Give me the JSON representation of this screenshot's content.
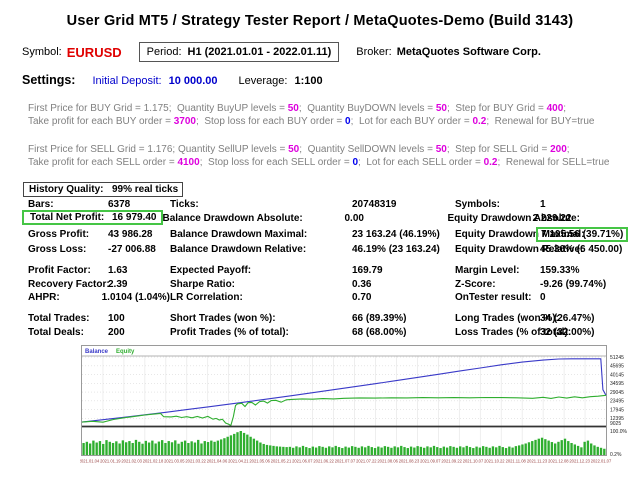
{
  "title": "User Grid MT5  /  Strategy Tester Report  /  MetaQuotes-Demo (Build 3143)",
  "header": {
    "symbol_label": "Symbol:",
    "symbol_value": "EURUSD",
    "period_label": "Period:",
    "period_value": "H1 (2021.01.01 - 2022.01.11)",
    "broker_label": "Broker:",
    "broker_value": "MetaQuotes Software Corp."
  },
  "settings": {
    "label": "Settings:",
    "deposit_label": "Initial Deposit:",
    "deposit_value": "10 000.00",
    "leverage_label": "Leverage:",
    "leverage_value": "1:100"
  },
  "params": {
    "lines": [
      [
        {
          "t": "First Price for BUY Grid = 1.175;  Quantity BuyUP levels = ",
          "c": "g"
        },
        {
          "t": "50",
          "c": "m"
        },
        {
          "t": ";  Quantity BuyDOWN levels = ",
          "c": "g"
        },
        {
          "t": "50",
          "c": "m"
        },
        {
          "t": ";  Step for BUY Grid = ",
          "c": "g"
        },
        {
          "t": "400",
          "c": "m"
        },
        {
          "t": ";",
          "c": "g"
        }
      ],
      [
        {
          "t": "Take profit for each BUY order = ",
          "c": "g"
        },
        {
          "t": "3700",
          "c": "m"
        },
        {
          "t": ";  Stop loss for each BUY order = ",
          "c": "g"
        },
        {
          "t": "0",
          "c": "b"
        },
        {
          "t": ";  Lot for each BUY order = ",
          "c": "g"
        },
        {
          "t": "0.2",
          "c": "m"
        },
        {
          "t": ";  Renewal for BUY=true",
          "c": "g"
        }
      ],
      [
        {
          "t": "First Price for SELL Grid = 1.176; Quantity SellUP levels = ",
          "c": "g"
        },
        {
          "t": "50",
          "c": "m"
        },
        {
          "t": ";  Quantity SellDOWN levels = ",
          "c": "g"
        },
        {
          "t": "50",
          "c": "m"
        },
        {
          "t": ";  Step for SELL Grid = ",
          "c": "g"
        },
        {
          "t": "200",
          "c": "m"
        },
        {
          "t": ";",
          "c": "g"
        }
      ],
      [
        {
          "t": "Take profit for each SELL order = ",
          "c": "g"
        },
        {
          "t": "4100",
          "c": "m"
        },
        {
          "t": ";  Stop loss for each SELL order = ",
          "c": "g"
        },
        {
          "t": "0",
          "c": "b"
        },
        {
          "t": ";  Lot for each SELL order = ",
          "c": "g"
        },
        {
          "t": "0.2",
          "c": "m"
        },
        {
          "t": ";  Renewal for SELL=true",
          "c": "g"
        }
      ]
    ],
    "paragraph_breaks": [
      2
    ]
  },
  "stats": {
    "rows": [
      {
        "gap": false,
        "cells": [
          {
            "l": "History Quality:",
            "v": "99% real ticks",
            "frame": "pair-black"
          },
          null,
          null
        ]
      },
      {
        "gap": false,
        "cells": [
          {
            "l": "Bars:",
            "v": "6378"
          },
          {
            "l": "Ticks:",
            "v": "20748319"
          },
          {
            "l": "Symbols:",
            "v": "1"
          }
        ]
      },
      {
        "gap": false,
        "cells": [
          {
            "l": "Total Net Profit:",
            "v": "16 979.40",
            "frame": "pair-green"
          },
          {
            "l": "Balance Drawdown Absolute:",
            "v": "0.00"
          },
          {
            "l": "Equity Drawdown Absolute:",
            "v": "2 229.22"
          }
        ]
      },
      {
        "gap": false,
        "cells": [
          {
            "l": "Gross Profit:",
            "v": "43 986.28"
          },
          {
            "l": "Balance Drawdown Maximal:",
            "v": "23 163.24 (46.19%)"
          },
          {
            "l": "Equity Drawdown Maximal:",
            "v": "7 105.56 (39.71%)",
            "frame": "value-green"
          }
        ]
      },
      {
        "gap": false,
        "cells": [
          {
            "l": "Gross Loss:",
            "v": "-27 006.88"
          },
          {
            "l": "Balance Drawdown Relative:",
            "v": "46.19% (23 163.24)"
          },
          {
            "l": "Equity Drawdown Relative:",
            "v": "45.36% (6 450.00)"
          }
        ]
      },
      {
        "gap": true,
        "cells": [
          {
            "l": "Profit Factor:",
            "v": "1.63"
          },
          {
            "l": "Expected Payoff:",
            "v": "169.79"
          },
          {
            "l": "Margin Level:",
            "v": "159.33%"
          }
        ]
      },
      {
        "gap": false,
        "cells": [
          {
            "l": "Recovery Factor:",
            "v": "2.39"
          },
          {
            "l": "Sharpe Ratio:",
            "v": "0.36"
          },
          {
            "l": "Z-Score:",
            "v": "-9.26 (99.74%)"
          }
        ]
      },
      {
        "gap": false,
        "cells": [
          {
            "l": "AHPR:",
            "v": "1.0104 (1.04%)"
          },
          {
            "l": "LR Correlation:",
            "v": "0.70"
          },
          {
            "l": "OnTester result:",
            "v": "0"
          }
        ]
      },
      {
        "gap": true,
        "cells": [
          {
            "l": "Total Trades:",
            "v": "100"
          },
          {
            "l": "Short Trades (won %):",
            "v": "66 (89.39%)"
          },
          {
            "l": "Long Trades (won %):",
            "v": "34 (26.47%)"
          }
        ]
      },
      {
        "gap": false,
        "cells": [
          {
            "l": "Total Deals:",
            "v": "200"
          },
          {
            "l": "Profit Trades (% of total):",
            "v": "68 (68.00%)"
          },
          {
            "l": "Loss Trades (% of total):",
            "v": "32 (32.00%)"
          }
        ]
      }
    ]
  },
  "chart_data": {
    "type": "line",
    "title": "Balance / Equity curve with deposit load bars",
    "legend": [
      {
        "name": "Balance",
        "color": "#3a3ac8"
      },
      {
        "name": "Equity",
        "color": "#2fae2f"
      }
    ],
    "y_axis_labels": [
      "51245",
      "45695",
      "40145",
      "34595",
      "29045",
      "23495",
      "17945",
      "12395"
    ],
    "y_bottom_label": "9025",
    "y_value_max": 51900,
    "y_value_min": 7500,
    "load_axis": {
      "top": "100.0%",
      "bottom": "0.2%"
    },
    "x_labels": [
      "2021.01.04",
      "2021.01.19",
      "2021.02.03",
      "2021.02.18",
      "2021.03.05",
      "2021.03.22",
      "2021.04.06",
      "2021.04.21",
      "2021.05.06",
      "2021.05.21",
      "2021.06.07",
      "2021.06.22",
      "2021.07.07",
      "2021.07.22",
      "2021.08.06",
      "2021.08.23",
      "2021.09.07",
      "2021.09.22",
      "2021.10.07",
      "2021.10.22",
      "2021.11.08",
      "2021.11.23",
      "2021.12.08",
      "2021.12.23",
      "2022.01.07"
    ],
    "series": [
      {
        "name": "Balance",
        "color": "#3a3ac8",
        "points": [
          [
            0,
            10000
          ],
          [
            4,
            11500
          ],
          [
            8,
            13050
          ],
          [
            12,
            14600
          ],
          [
            16,
            16200
          ],
          [
            20,
            17900
          ],
          [
            24,
            19600
          ],
          [
            28,
            21300
          ],
          [
            32,
            23100
          ],
          [
            36,
            24900
          ],
          [
            40,
            26700
          ],
          [
            44,
            28600
          ],
          [
            48,
            30500
          ],
          [
            52,
            32400
          ],
          [
            56,
            34300
          ],
          [
            60,
            36300
          ],
          [
            64,
            38300
          ],
          [
            68,
            40300
          ],
          [
            72,
            42300
          ],
          [
            76,
            44300
          ],
          [
            80,
            46300
          ],
          [
            84,
            48000
          ],
          [
            88,
            49300
          ],
          [
            91,
            50000
          ],
          [
            93.5,
            50148
          ],
          [
            99,
            50148
          ],
          [
            99.4,
            30500
          ],
          [
            100,
            26979
          ]
        ]
      },
      {
        "name": "Equity",
        "color": "#2fae2f",
        "points": [
          [
            0,
            10000
          ],
          [
            2,
            10500
          ],
          [
            4,
            9900
          ],
          [
            6,
            11600
          ],
          [
            8,
            12700
          ],
          [
            10,
            13600
          ],
          [
            12,
            14500
          ],
          [
            14,
            15200
          ],
          [
            15,
            15400
          ],
          [
            15.6,
            13400
          ],
          [
            17,
            13300
          ],
          [
            18,
            13700
          ],
          [
            19,
            12900
          ],
          [
            20,
            13400
          ],
          [
            21,
            12700
          ],
          [
            22,
            13500
          ],
          [
            23,
            12600
          ],
          [
            24,
            13600
          ],
          [
            25,
            11800
          ],
          [
            25.6,
            12300
          ],
          [
            26.2,
            11300
          ],
          [
            26.8,
            11800
          ],
          [
            27.4,
            9400
          ],
          [
            28,
            8600
          ],
          [
            28.4,
            7771
          ],
          [
            28.9,
            13500
          ],
          [
            29.3,
            20500
          ],
          [
            29.7,
            21600
          ],
          [
            30.5,
            21900
          ],
          [
            31.1,
            19900
          ],
          [
            31.7,
            22300
          ],
          [
            32.4,
            22500
          ],
          [
            33.1,
            20800
          ],
          [
            33.9,
            23000
          ],
          [
            34.7,
            23300
          ],
          [
            35.4,
            22000
          ],
          [
            36.1,
            23600
          ],
          [
            37,
            23800
          ],
          [
            38,
            22600
          ],
          [
            39,
            24100
          ],
          [
            40,
            24400
          ],
          [
            42,
            24700
          ],
          [
            44,
            24500
          ],
          [
            46,
            24900
          ],
          [
            48,
            24700
          ],
          [
            50,
            25100
          ],
          [
            53,
            25300
          ],
          [
            56,
            25200
          ],
          [
            59,
            25400
          ],
          [
            62,
            25300
          ],
          [
            65,
            25500
          ],
          [
            68,
            25400
          ],
          [
            71,
            25500
          ],
          [
            74,
            25400
          ],
          [
            77,
            25600
          ],
          [
            80,
            25500
          ],
          [
            83,
            25400
          ],
          [
            86,
            25100
          ],
          [
            88,
            25700
          ],
          [
            89.5,
            25000
          ],
          [
            91,
            25900
          ],
          [
            92.5,
            25200
          ],
          [
            94,
            26000
          ],
          [
            95.5,
            25400
          ],
          [
            97,
            26100
          ],
          [
            98.5,
            26400
          ],
          [
            100,
            26979
          ]
        ]
      }
    ],
    "deposit_load_bars": [
      50,
      55,
      48,
      60,
      52,
      58,
      46,
      62,
      55,
      50,
      57,
      48,
      61,
      53,
      58,
      50,
      63,
      55,
      47,
      59,
      52,
      60,
      48,
      56,
      62,
      50,
      58,
      53,
      61,
      47,
      55,
      60,
      50,
      57,
      52,
      63,
      48,
      58,
      54,
      60,
      55,
      60,
      65,
      70,
      76,
      82,
      88,
      95,
      100,
      92,
      85,
      76,
      68,
      60,
      52,
      46,
      42,
      40,
      38,
      36,
      35,
      34,
      33,
      34,
      30,
      36,
      32,
      38,
      33,
      29,
      35,
      31,
      37,
      34,
      30,
      36,
      32,
      38,
      33,
      29,
      35,
      31,
      37,
      34,
      30,
      36,
      32,
      38,
      33,
      29,
      35,
      31,
      37,
      34,
      30,
      36,
      32,
      38,
      33,
      29,
      35,
      31,
      37,
      34,
      30,
      36,
      32,
      38,
      33,
      29,
      35,
      31,
      37,
      34,
      30,
      36,
      32,
      38,
      33,
      29,
      35,
      31,
      37,
      34,
      30,
      36,
      32,
      38,
      33,
      29,
      35,
      31,
      37,
      40,
      44,
      48,
      53,
      58,
      63,
      68,
      72,
      66,
      60,
      54,
      48,
      55,
      62,
      68,
      58,
      50,
      44,
      38,
      32,
      55,
      60,
      48,
      40,
      34,
      30,
      26
    ],
    "colors": {
      "grid": "#d9d9d9",
      "vgrid": "#e3e3e3",
      "border": "#9a9a9a",
      "divider": "#333333",
      "bar_fill": "#2fae2f",
      "axis_text": "#222222",
      "date_text": "#994444"
    }
  }
}
